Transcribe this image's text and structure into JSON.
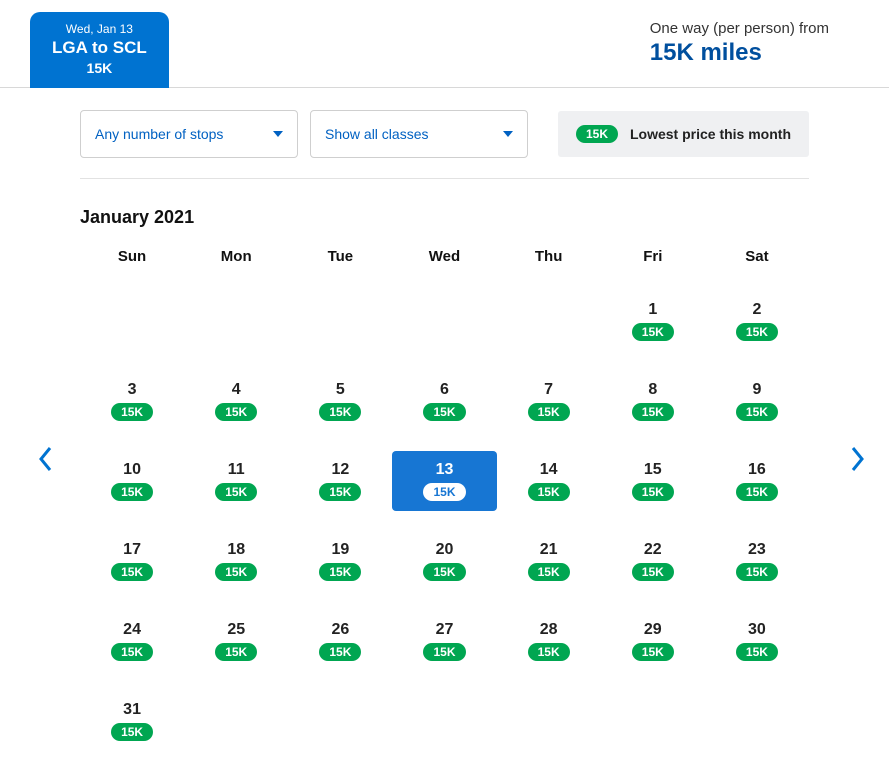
{
  "colors": {
    "primary": "#0073d1",
    "primary_dark": "#004f9e",
    "pill_green": "#00a651",
    "pill_selected_bg": "#ffffff",
    "pill_selected_text": "#1776d3",
    "select_text": "#0061c2",
    "band_border": "#d8d8d8",
    "lowest_bg": "#eff0f2"
  },
  "tab": {
    "date_label": "Wed, Jan 13",
    "route": "LGA to SCL",
    "miles": "15K"
  },
  "summary": {
    "label": "One way (per person) from",
    "value": "15K miles"
  },
  "filters": {
    "stops": {
      "selected": "Any number of stops"
    },
    "class": {
      "selected": "Show all classes"
    }
  },
  "lowest": {
    "pill": "15K",
    "text": "Lowest price this month"
  },
  "calendar": {
    "month_title": "January 2021",
    "dow": [
      "Sun",
      "Mon",
      "Tue",
      "Wed",
      "Thu",
      "Fri",
      "Sat"
    ],
    "first_weekday_index": 5,
    "selected_day": 13,
    "days": [
      {
        "n": 1,
        "price": "15K"
      },
      {
        "n": 2,
        "price": "15K"
      },
      {
        "n": 3,
        "price": "15K"
      },
      {
        "n": 4,
        "price": "15K"
      },
      {
        "n": 5,
        "price": "15K"
      },
      {
        "n": 6,
        "price": "15K"
      },
      {
        "n": 7,
        "price": "15K"
      },
      {
        "n": 8,
        "price": "15K"
      },
      {
        "n": 9,
        "price": "15K"
      },
      {
        "n": 10,
        "price": "15K"
      },
      {
        "n": 11,
        "price": "15K"
      },
      {
        "n": 12,
        "price": "15K"
      },
      {
        "n": 13,
        "price": "15K"
      },
      {
        "n": 14,
        "price": "15K"
      },
      {
        "n": 15,
        "price": "15K"
      },
      {
        "n": 16,
        "price": "15K"
      },
      {
        "n": 17,
        "price": "15K"
      },
      {
        "n": 18,
        "price": "15K"
      },
      {
        "n": 19,
        "price": "15K"
      },
      {
        "n": 20,
        "price": "15K"
      },
      {
        "n": 21,
        "price": "15K"
      },
      {
        "n": 22,
        "price": "15K"
      },
      {
        "n": 23,
        "price": "15K"
      },
      {
        "n": 24,
        "price": "15K"
      },
      {
        "n": 25,
        "price": "15K"
      },
      {
        "n": 26,
        "price": "15K"
      },
      {
        "n": 27,
        "price": "15K"
      },
      {
        "n": 28,
        "price": "15K"
      },
      {
        "n": 29,
        "price": "15K"
      },
      {
        "n": 30,
        "price": "15K"
      },
      {
        "n": 31,
        "price": "15K"
      }
    ]
  }
}
